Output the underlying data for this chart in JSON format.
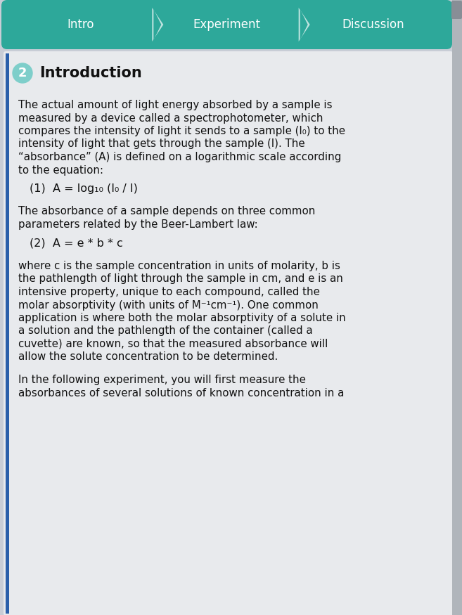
{
  "fig_w": 6.57,
  "fig_h": 8.75,
  "dpi": 100,
  "bg_color": "#c8cdd6",
  "nav_color": "#2da89a",
  "body_bg": "#e8eaed",
  "left_bar_color": "#2a5faa",
  "section_circle_color": "#7ececa",
  "text_dark": "#111111",
  "nav_items": [
    "Intro",
    "Experiment",
    "Discussion"
  ],
  "section_num": "2",
  "section_title": "Introduction",
  "paragraph1_lines": [
    "The actual amount of light energy absorbed by a sample is",
    "measured by a device called a spectrophotometer, which",
    "compares the intensity of light it sends to a sample (I₀) to the",
    "intensity of light that gets through the sample (I). The",
    "“absorbance” (A) is defined on a logarithmic scale according",
    "to the equation:"
  ],
  "eq1": "(1)  A = log₁₀ (I₀ / I)",
  "paragraph2_lines": [
    "The absorbance of a sample depends on three common",
    "parameters related by the Beer-Lambert law:"
  ],
  "eq2": "(2)  A = e * b * c",
  "paragraph3_lines": [
    "where c is the sample concentration in units of molarity, b is",
    "the pathlength of light through the sample in cm, and e is an",
    "intensive property, unique to each compound, called the",
    "molar absorptivity (with units of M⁻¹cm⁻¹). One common",
    "application is where both the molar absorptivity of a solute in",
    "a solution and the pathlength of the container (called a",
    "cuvette) are known, so that the measured absorbance will",
    "allow the solute concentration to be determined."
  ],
  "paragraph4_lines": [
    "In the following experiment, you will first measure the",
    "absorbances of several solutions of known concentration in a"
  ],
  "scrollbar_color": "#b0b5bb",
  "scrollbar_thumb": "#888e96"
}
